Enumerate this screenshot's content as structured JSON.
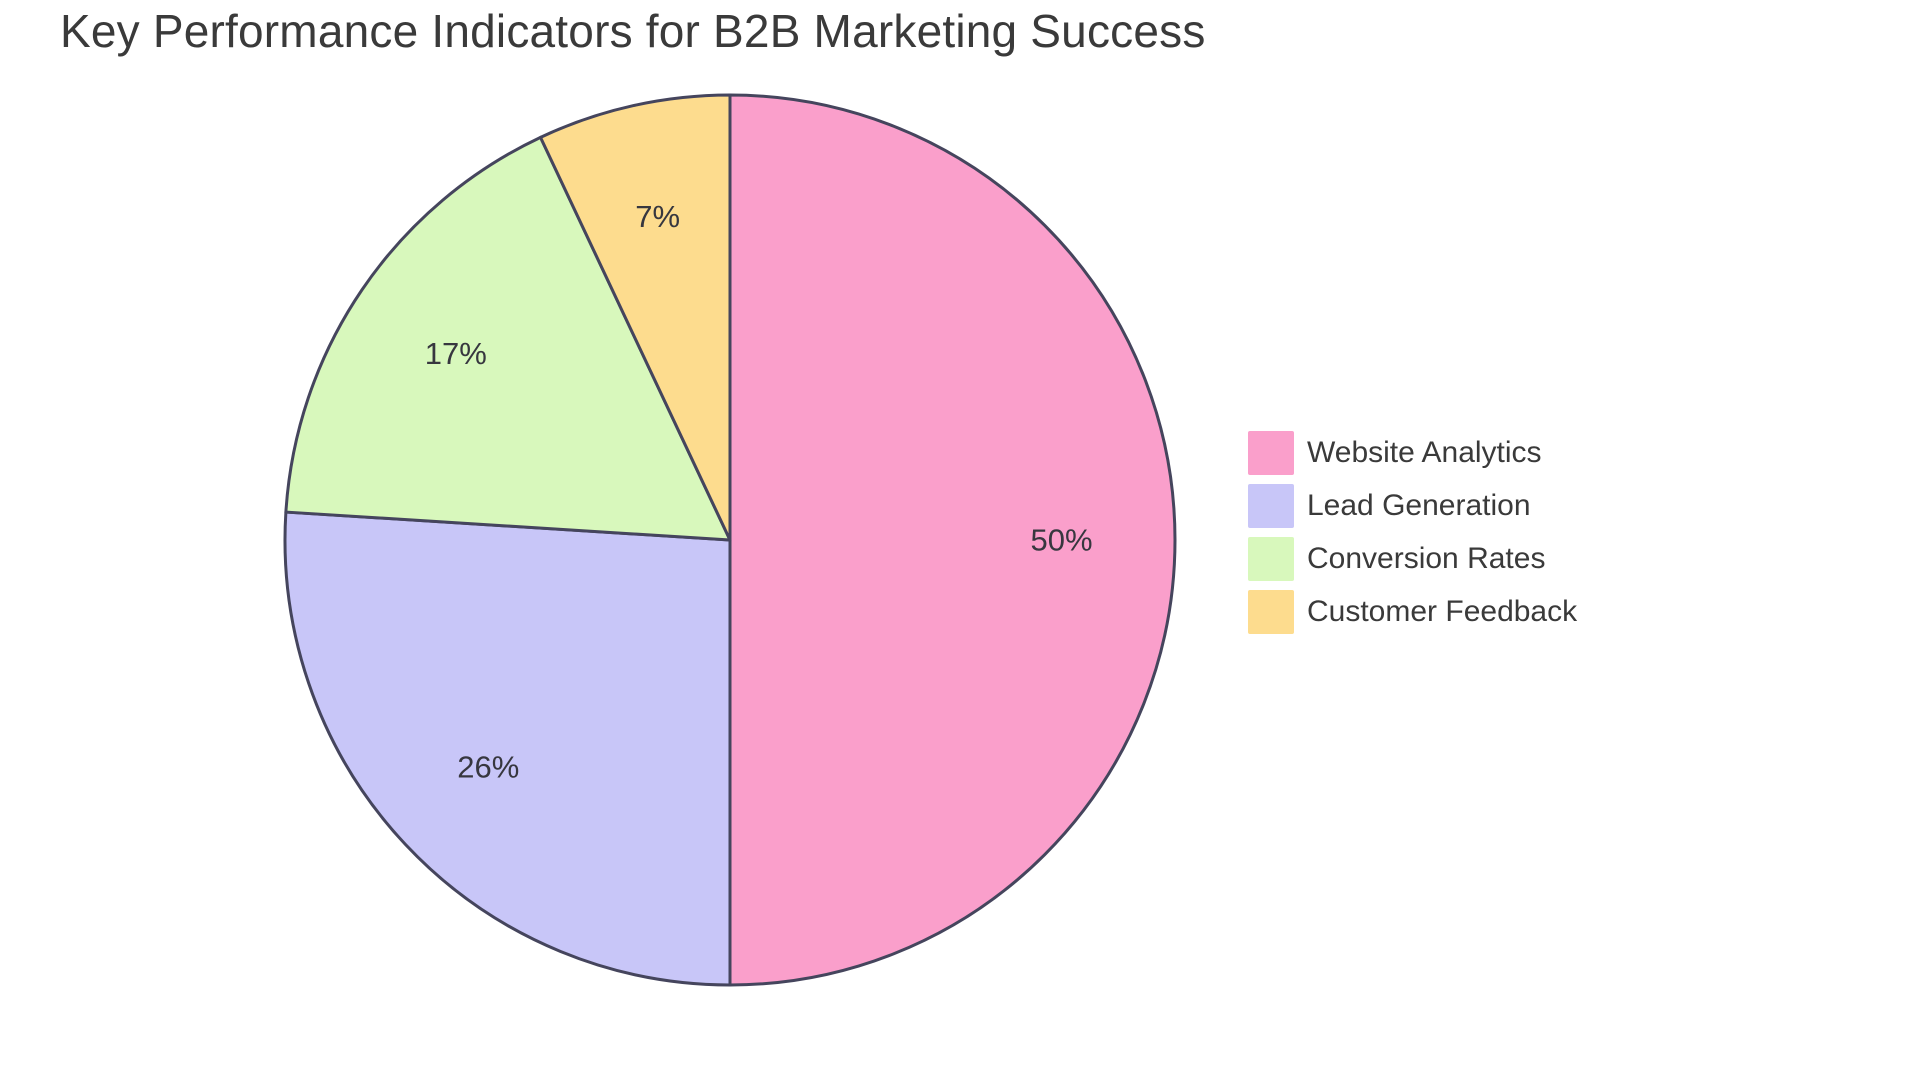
{
  "page": {
    "background_color": "#ffffff"
  },
  "chart_data": {
    "type": "pie",
    "title": "Key Performance Indicators for B2B Marketing Success",
    "direction": "clockwise",
    "start_angle_deg": 0,
    "legend_position": "right",
    "grid": false,
    "slice_stroke_color": "#45455d",
    "title_color": "#3a3a3a",
    "label_color": "#37373f",
    "slices": [
      {
        "label": "Website Analytics",
        "value": 50,
        "display": "50%",
        "color": "#fa9fcb"
      },
      {
        "label": "Lead Generation",
        "value": 26,
        "display": "26%",
        "color": "#c8c6f8"
      },
      {
        "label": "Conversion Rates",
        "value": 17,
        "display": "17%",
        "color": "#d8f8bc"
      },
      {
        "label": "Customer Feedback",
        "value": 7,
        "display": "7%",
        "color": "#fddc8e"
      }
    ]
  }
}
